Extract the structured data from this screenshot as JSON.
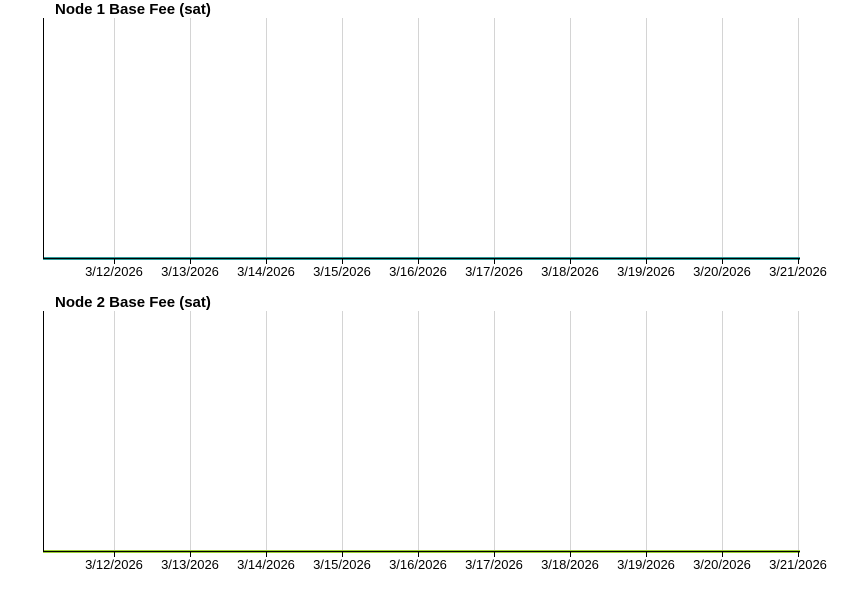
{
  "chart_data": [
    {
      "type": "line",
      "title": "Node 1 Base Fee (sat)",
      "x": [
        "3/12/2026",
        "3/13/2026",
        "3/14/2026",
        "3/15/2026",
        "3/16/2026",
        "3/17/2026",
        "3/18/2026",
        "3/19/2026",
        "3/20/2026",
        "3/21/2026"
      ],
      "series": [
        {
          "name": "Node 1 Base Fee (sat)",
          "values": [
            0,
            0,
            0,
            0,
            0,
            0,
            0,
            0,
            0,
            0
          ],
          "color": "#2e9999"
        }
      ],
      "xlabel": "",
      "ylabel": "",
      "legend": "none",
      "grid": "vertical-only",
      "gridline_color": "#d4d4d4",
      "axis_color": "#000000",
      "y_axis_labels_visible": false
    },
    {
      "type": "line",
      "title": "Node 2 Base Fee (sat)",
      "x": [
        "3/12/2026",
        "3/13/2026",
        "3/14/2026",
        "3/15/2026",
        "3/16/2026",
        "3/17/2026",
        "3/18/2026",
        "3/19/2026",
        "3/20/2026",
        "3/21/2026"
      ],
      "series": [
        {
          "name": "Node 2 Base Fee (sat)",
          "values": [
            0,
            0,
            0,
            0,
            0,
            0,
            0,
            0,
            0,
            0
          ],
          "color": "#9acd32"
        }
      ],
      "xlabel": "",
      "ylabel": "",
      "legend": "none",
      "grid": "vertical-only",
      "gridline_color": "#d4d4d4",
      "axis_color": "#000000",
      "y_axis_labels_visible": false
    }
  ]
}
